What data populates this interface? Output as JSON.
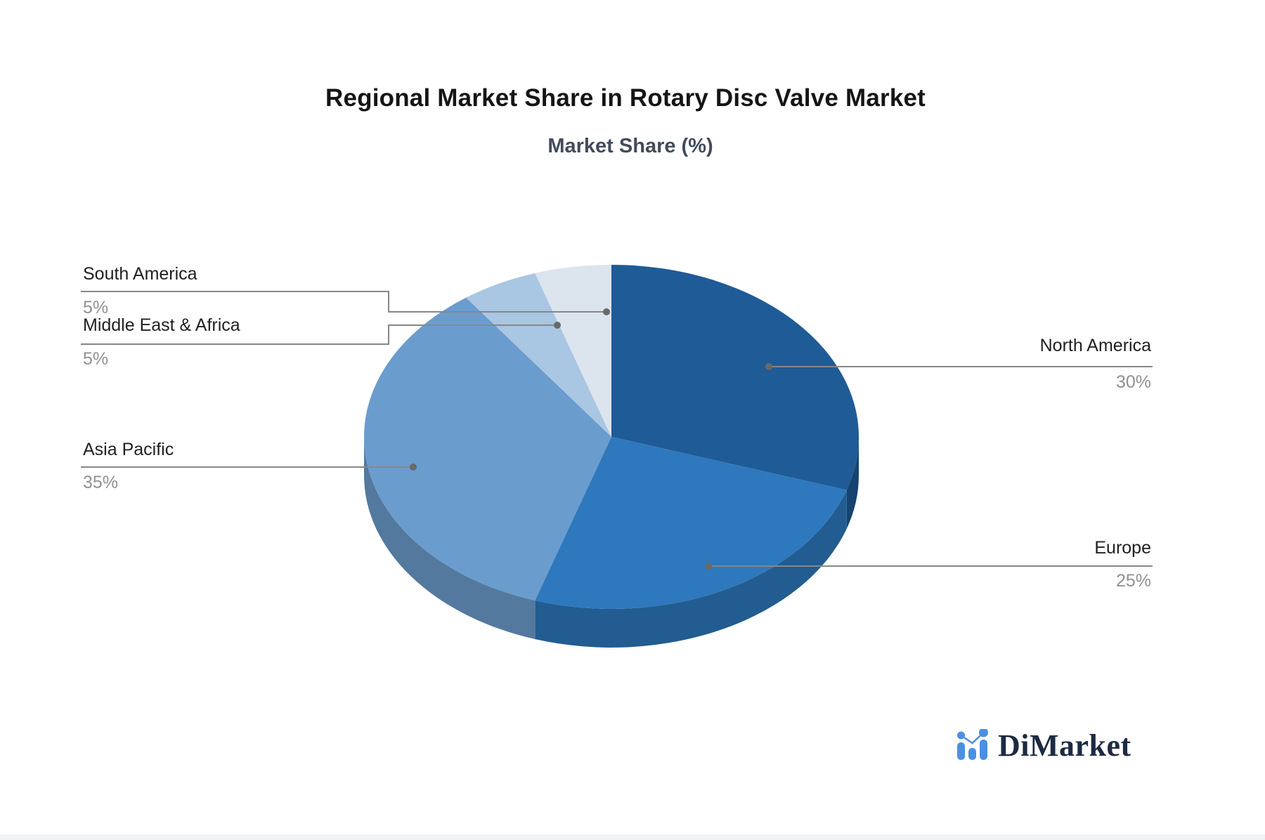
{
  "chart_data": {
    "type": "pie",
    "is_3d": true,
    "title": "Regional Market Share in Rotary Disc Valve Market",
    "subtitle": "Market Share (%)",
    "unit": "%",
    "start_angle_deg": 0,
    "direction": "clockwise",
    "background": "#ffffff",
    "callout_line_color": "#878787",
    "slices": [
      {
        "label": "North America",
        "value": 30,
        "value_label": "30%",
        "color": "#1F5B97",
        "side_color": "#16436F"
      },
      {
        "label": "Europe",
        "value": 25,
        "value_label": "25%",
        "color": "#2E78BD",
        "side_color": "#225C90"
      },
      {
        "label": "Asia Pacific",
        "value": 35,
        "value_label": "35%",
        "color": "#6B9CCE",
        "side_color": "#54799E"
      },
      {
        "label": "Middle East & Africa",
        "value": 5,
        "value_label": "5%",
        "color": "#A9C6E2",
        "side_color": "#7E95AC"
      },
      {
        "label": "South America",
        "value": 5,
        "value_label": "5%",
        "color": "#DCE4EE",
        "side_color": "#A5ACB8"
      }
    ]
  },
  "branding": {
    "logo_text": "DiMarket",
    "logo_icon": "bar-chart-sparkline-icon",
    "logo_accent_color": "#4A90E2",
    "logo_text_color": "#1C2B42"
  }
}
